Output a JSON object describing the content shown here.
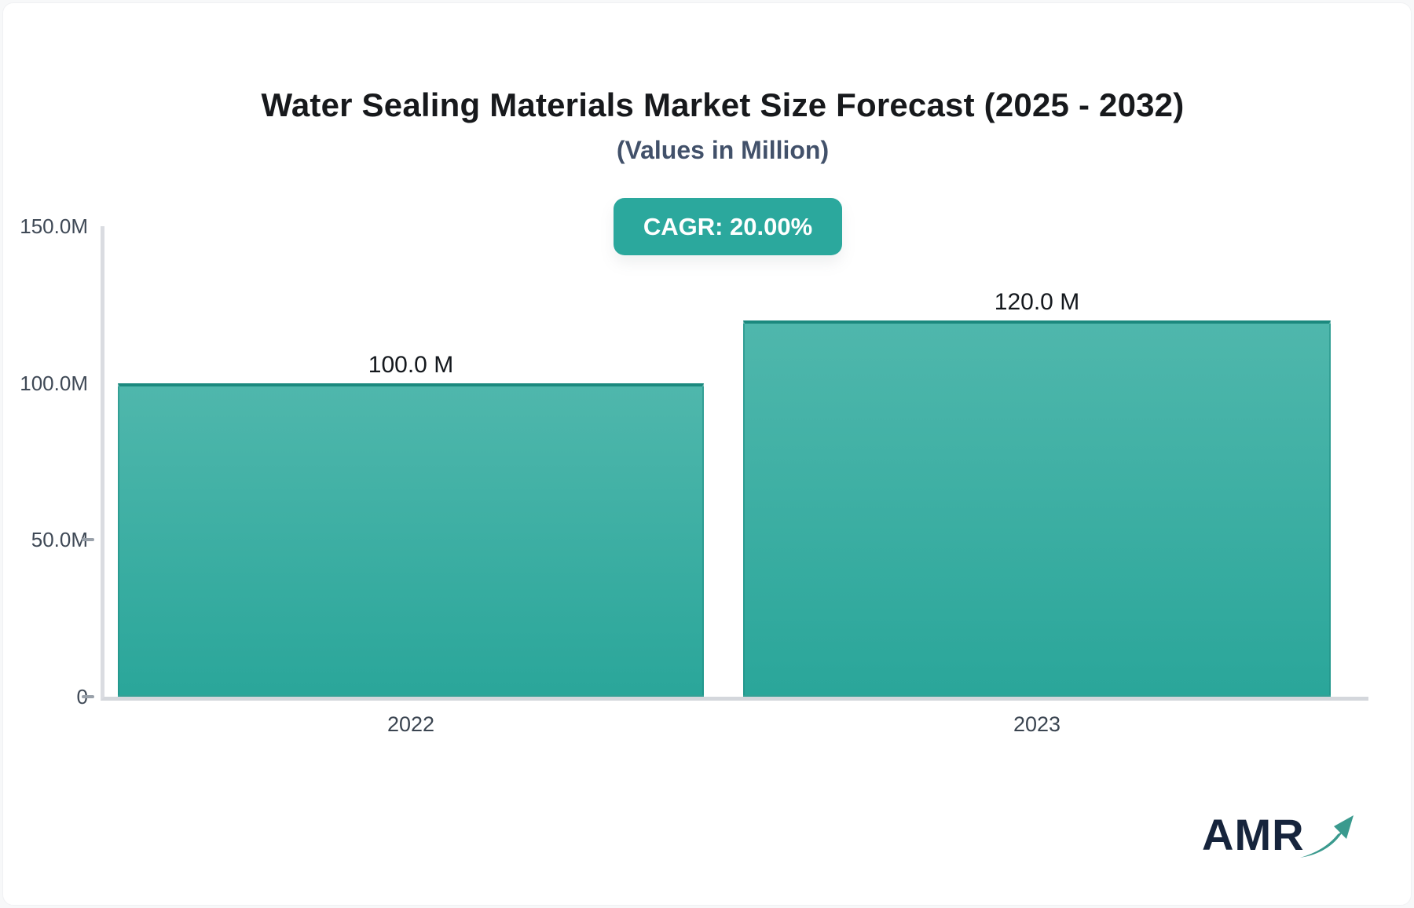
{
  "header": {
    "title": "Water Sealing Materials Market Size Forecast (2025 - 2032)",
    "subtitle": "(Values in Million)",
    "cagr_badge": "CAGR: 20.00%"
  },
  "colors": {
    "badge_bg": "#2ba89d",
    "bar_gradient_top": "#4fb7ac",
    "bar_gradient_bottom": "#2aa69a",
    "bar_border": "#1b897e",
    "axis_line": "#dadce1",
    "logo_text": "#16243c",
    "logo_arrow": "#3a9a8e"
  },
  "chart_data": {
    "type": "bar",
    "categories": [
      "2022",
      "2023"
    ],
    "values": [
      100.0,
      120.0
    ],
    "value_labels": [
      "100.0 M",
      "120.0 M"
    ],
    "title": "Water Sealing Materials Market Size Forecast (2025 - 2032)",
    "subtitle": "(Values in Million)",
    "xlabel": "",
    "ylabel": "",
    "unit": "Million",
    "ylim": [
      0,
      150
    ],
    "grid": false,
    "yticks": [
      {
        "value": 150,
        "label": "150.0M",
        "dash": false
      },
      {
        "value": 100,
        "label": "100.0M",
        "dash": false
      },
      {
        "value": 50,
        "label": "50.0M",
        "dash": true
      },
      {
        "value": 0,
        "label": "0",
        "dash": true
      }
    ],
    "cagr": "20.00%"
  },
  "logo": {
    "text": "AMR"
  }
}
